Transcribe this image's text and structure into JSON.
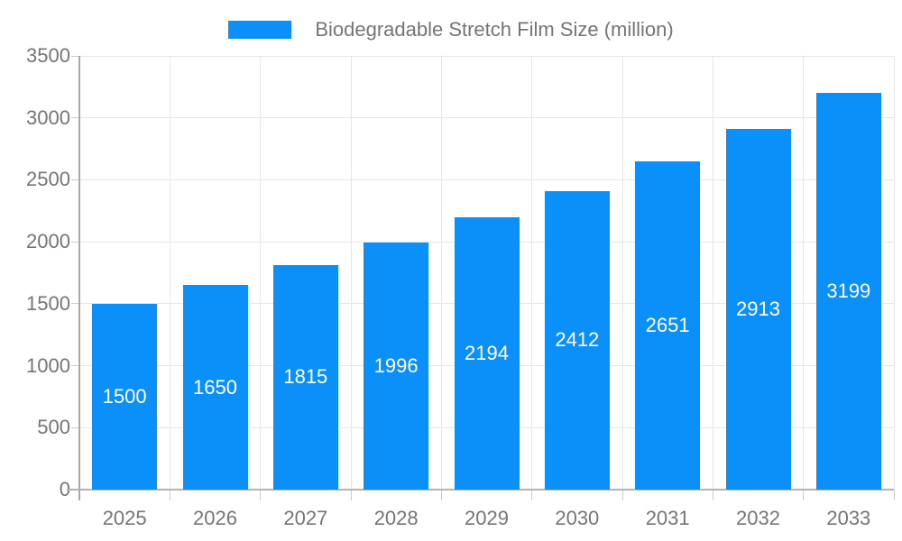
{
  "legend": {
    "label": "Biodegradable Stretch Film Size (million)"
  },
  "colors": {
    "bar": "#0a90f8",
    "value_label": "#ffffff",
    "axis_label": "#757575",
    "grid_line": "#e6e6e6",
    "axis_line": "#a8a8a8",
    "background": "#ffffff"
  },
  "chart_data": {
    "type": "bar",
    "title": "Biodegradable Stretch Film Size (million)",
    "categories": [
      "2025",
      "2026",
      "2027",
      "2028",
      "2029",
      "2030",
      "2031",
      "2032",
      "2033"
    ],
    "values": [
      1500,
      1650,
      1815,
      1996,
      2194,
      2412,
      2651,
      2913,
      3199
    ],
    "series_name": "Biodegradable Stretch Film Size (million)",
    "xlabel": "",
    "ylabel": "",
    "ylim": [
      0,
      3500
    ],
    "ytick_step": 500,
    "ytick_labels": [
      "0",
      "500",
      "1000",
      "1500",
      "2000",
      "2500",
      "3000",
      "3500"
    ],
    "grid": true,
    "legend_position": "top",
    "value_label_position": "inside-center"
  }
}
